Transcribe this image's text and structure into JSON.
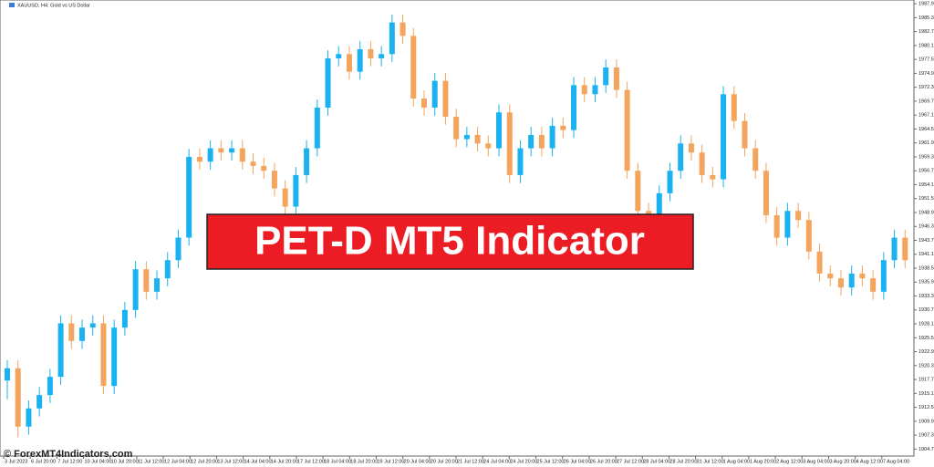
{
  "chart_data": {
    "type": "candlestick",
    "title": "XAUUSD, H4: Gold vs US Dollar",
    "banner": "PET-D MT5 Indicator",
    "watermark": "© ForexMT4Indicators.com",
    "bull_color": "#1ab2f0",
    "bear_color": "#f4a45c",
    "ylim": [
      1903.4,
      1988.6
    ],
    "yticks": [
      {
        "value": 1904.7,
        "label": "1904.70"
      },
      {
        "value": 1907.3,
        "label": "1907.30"
      },
      {
        "value": 1909.9,
        "label": "1909.90"
      },
      {
        "value": 1912.5,
        "label": "1912.50"
      },
      {
        "value": 1915.1,
        "label": "1915.10"
      },
      {
        "value": 1917.7,
        "label": "1917.70"
      },
      {
        "value": 1920.3,
        "label": "1920.30"
      },
      {
        "value": 1922.9,
        "label": "1922.90"
      },
      {
        "value": 1925.5,
        "label": "1925.50"
      },
      {
        "value": 1928.1,
        "label": "1928.10"
      },
      {
        "value": 1930.7,
        "label": "1930.70"
      },
      {
        "value": 1933.3,
        "label": "1933.30"
      },
      {
        "value": 1935.9,
        "label": "1935.90"
      },
      {
        "value": 1938.5,
        "label": "1938.50"
      },
      {
        "value": 1941.1,
        "label": "1941.10"
      },
      {
        "value": 1943.7,
        "label": "1943.70"
      },
      {
        "value": 1946.3,
        "label": "1946.30"
      },
      {
        "value": 1948.9,
        "label": "1948.90"
      },
      {
        "value": 1951.5,
        "label": "1951.50"
      },
      {
        "value": 1954.1,
        "label": "1954.10"
      },
      {
        "value": 1956.7,
        "label": "1956.70"
      },
      {
        "value": 1959.3,
        "label": "1959.30"
      },
      {
        "value": 1961.9,
        "label": "1961.90"
      },
      {
        "value": 1964.5,
        "label": "1964.50"
      },
      {
        "value": 1967.1,
        "label": "1967.10"
      },
      {
        "value": 1969.7,
        "label": "1969.70"
      },
      {
        "value": 1972.3,
        "label": "1972.30"
      },
      {
        "value": 1974.9,
        "label": "1974.90"
      },
      {
        "value": 1977.5,
        "label": "1977.50"
      },
      {
        "value": 1980.1,
        "label": "1980.10"
      },
      {
        "value": 1982.7,
        "label": "1982.70"
      },
      {
        "value": 1985.3,
        "label": "1985.30"
      },
      {
        "value": 1987.9,
        "label": "1987.90"
      }
    ],
    "x_labels": [
      "3 Jul 2023",
      "6 Jul 20:00",
      "7 Jul 12:00",
      "10 Jul 04:00",
      "10 Jul 20:00",
      "11 Jul 12:00",
      "12 Jul 04:00",
      "12 Jul 20:00",
      "13 Jul 12:00",
      "14 Jul 04:00",
      "14 Jul 20:00",
      "17 Jul 12:00",
      "18 Jul 04:00",
      "18 Jul 20:00",
      "19 Jul 12:00",
      "20 Jul 04:00",
      "20 Jul 20:00",
      "21 Jul 12:00",
      "24 Jul 04:00",
      "24 Jul 20:00",
      "25 Jul 12:00",
      "26 Jul 04:00",
      "26 Jul 20:00",
      "27 Jul 12:00",
      "28 Jul 04:00",
      "28 Jul 20:00",
      "31 Jul 12:00",
      "1 Aug 04:00",
      "1 Aug 20:00",
      "2 Aug 12:00",
      "3 Aug 04:00",
      "3 Aug 20:00",
      "4 Aug 12:00",
      "7 Aug 04:00"
    ],
    "ohlc": [
      [
        1917.5,
        1921.3,
        1914.0,
        1919.8
      ],
      [
        1919.8,
        1921.3,
        1906.9,
        1908.9
      ],
      [
        1908.9,
        1913.8,
        1907.4,
        1912.3
      ],
      [
        1912.3,
        1916.3,
        1910.8,
        1914.8
      ],
      [
        1914.8,
        1919.7,
        1913.3,
        1918.2
      ],
      [
        1918.2,
        1929.7,
        1916.7,
        1928.2
      ],
      [
        1928.2,
        1929.7,
        1923.4,
        1924.9
      ],
      [
        1924.9,
        1928.9,
        1923.4,
        1927.4
      ],
      [
        1927.4,
        1929.7,
        1925.9,
        1928.2
      ],
      [
        1928.2,
        1929.7,
        1915.0,
        1916.5
      ],
      [
        1916.5,
        1928.9,
        1915.0,
        1927.4
      ],
      [
        1927.4,
        1932.2,
        1925.9,
        1930.7
      ],
      [
        1930.7,
        1939.8,
        1929.2,
        1938.3
      ],
      [
        1938.3,
        1939.8,
        1932.6,
        1934.1
      ],
      [
        1934.1,
        1938.1,
        1932.6,
        1936.6
      ],
      [
        1936.6,
        1941.5,
        1935.1,
        1940.0
      ],
      [
        1940.0,
        1945.7,
        1938.5,
        1944.2
      ],
      [
        1944.2,
        1960.8,
        1942.7,
        1959.3
      ],
      [
        1959.3,
        1960.8,
        1956.9,
        1958.4
      ],
      [
        1958.4,
        1962.4,
        1956.9,
        1960.9
      ],
      [
        1960.9,
        1962.4,
        1958.6,
        1960.1
      ],
      [
        1960.1,
        1962.4,
        1958.6,
        1960.9
      ],
      [
        1960.9,
        1962.4,
        1956.9,
        1958.4
      ],
      [
        1958.4,
        1959.9,
        1956.1,
        1957.6
      ],
      [
        1957.6,
        1959.1,
        1955.2,
        1956.7
      ],
      [
        1956.7,
        1958.2,
        1951.9,
        1953.4
      ],
      [
        1953.4,
        1954.9,
        1948.5,
        1950.0
      ],
      [
        1950.0,
        1957.4,
        1948.5,
        1955.9
      ],
      [
        1955.9,
        1962.4,
        1954.4,
        1960.9
      ],
      [
        1960.9,
        1970.0,
        1959.4,
        1968.5
      ],
      [
        1968.5,
        1979.2,
        1967.0,
        1977.7
      ],
      [
        1977.7,
        1980.0,
        1976.2,
        1978.5
      ],
      [
        1978.5,
        1980.0,
        1973.7,
        1975.2
      ],
      [
        1975.2,
        1980.9,
        1973.7,
        1979.4
      ],
      [
        1979.4,
        1980.9,
        1976.2,
        1977.7
      ],
      [
        1977.7,
        1980.0,
        1976.2,
        1978.5
      ],
      [
        1978.5,
        1985.9,
        1977.0,
        1984.4
      ],
      [
        1984.4,
        1985.9,
        1980.4,
        1981.9
      ],
      [
        1981.9,
        1983.4,
        1968.7,
        1970.2
      ],
      [
        1970.2,
        1971.7,
        1967.0,
        1968.5
      ],
      [
        1968.5,
        1975.0,
        1967.0,
        1973.5
      ],
      [
        1973.5,
        1975.0,
        1965.3,
        1966.8
      ],
      [
        1966.8,
        1968.3,
        1961.1,
        1962.6
      ],
      [
        1962.6,
        1964.9,
        1961.1,
        1963.4
      ],
      [
        1963.4,
        1964.9,
        1960.3,
        1961.8
      ],
      [
        1961.8,
        1963.3,
        1959.4,
        1960.9
      ],
      [
        1960.9,
        1969.1,
        1959.4,
        1967.6
      ],
      [
        1967.6,
        1969.1,
        1954.4,
        1955.9
      ],
      [
        1955.9,
        1962.4,
        1954.4,
        1960.9
      ],
      [
        1960.9,
        1964.9,
        1959.4,
        1963.4
      ],
      [
        1963.4,
        1964.9,
        1959.4,
        1960.9
      ],
      [
        1960.9,
        1966.6,
        1959.4,
        1965.1
      ],
      [
        1965.1,
        1966.6,
        1962.8,
        1964.3
      ],
      [
        1964.3,
        1974.2,
        1962.8,
        1972.7
      ],
      [
        1972.7,
        1974.2,
        1969.5,
        1971.0
      ],
      [
        1971.0,
        1974.2,
        1969.5,
        1972.7
      ],
      [
        1972.7,
        1977.5,
        1971.2,
        1976.0
      ],
      [
        1976.0,
        1977.5,
        1970.3,
        1971.8
      ],
      [
        1971.8,
        1973.3,
        1955.2,
        1956.7
      ],
      [
        1956.7,
        1958.2,
        1947.7,
        1949.2
      ],
      [
        1949.2,
        1950.7,
        1946.9,
        1948.4
      ],
      [
        1948.4,
        1954.0,
        1946.9,
        1952.5
      ],
      [
        1952.5,
        1958.2,
        1951.0,
        1956.7
      ],
      [
        1956.7,
        1963.3,
        1955.2,
        1961.8
      ],
      [
        1961.8,
        1963.3,
        1958.6,
        1960.1
      ],
      [
        1960.1,
        1961.6,
        1954.4,
        1955.9
      ],
      [
        1955.9,
        1957.4,
        1953.6,
        1955.1
      ],
      [
        1955.1,
        1972.5,
        1953.6,
        1971.0
      ],
      [
        1971.0,
        1972.5,
        1964.5,
        1966.0
      ],
      [
        1966.0,
        1967.5,
        1959.4,
        1960.9
      ],
      [
        1960.9,
        1962.4,
        1955.2,
        1956.7
      ],
      [
        1956.7,
        1958.2,
        1946.9,
        1948.4
      ],
      [
        1948.4,
        1949.9,
        1942.7,
        1944.2
      ],
      [
        1944.2,
        1950.7,
        1942.7,
        1949.2
      ],
      [
        1949.2,
        1950.7,
        1946.0,
        1947.5
      ],
      [
        1947.5,
        1949.0,
        1940.1,
        1941.6
      ],
      [
        1941.6,
        1943.1,
        1936.0,
        1937.5
      ],
      [
        1937.5,
        1939.0,
        1935.1,
        1936.6
      ],
      [
        1936.6,
        1938.1,
        1933.4,
        1934.9
      ],
      [
        1934.9,
        1939.0,
        1933.4,
        1937.5
      ],
      [
        1937.5,
        1939.0,
        1935.1,
        1936.6
      ],
      [
        1936.6,
        1938.1,
        1932.6,
        1934.1
      ],
      [
        1934.1,
        1941.5,
        1932.6,
        1940.0
      ],
      [
        1940.0,
        1945.7,
        1938.5,
        1944.2
      ],
      [
        1944.2,
        1945.7,
        1938.5,
        1940.0
      ]
    ]
  }
}
